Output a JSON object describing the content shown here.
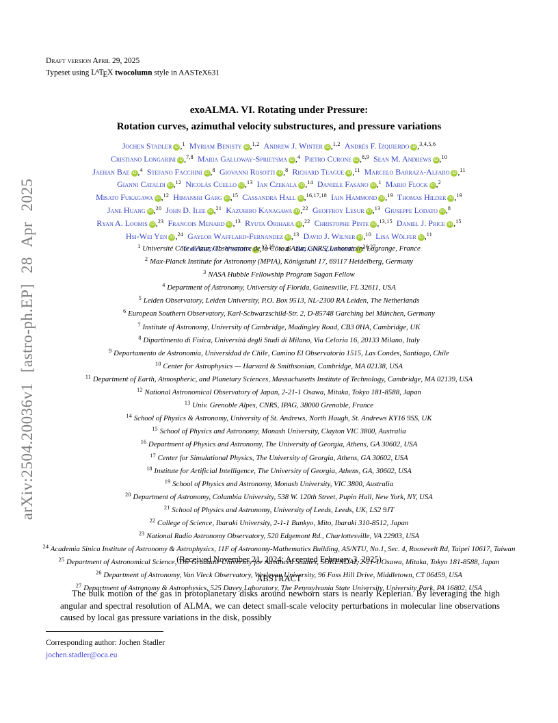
{
  "colors": {
    "author_link": "#3342c2",
    "email_link": "#4646dd",
    "orcid_green": "#a6ce39",
    "sidebar_gray": "#7c7c7c"
  },
  "icons": {
    "orcid_label": "iD"
  },
  "sidebar": {
    "stamp": "arXiv:2504.20036v1 [astro-ph.EP] 28 Apr 2025"
  },
  "header": {
    "draft_line": "Draft version April 29, 2025",
    "typeset_pre": "Typeset using ",
    "latex": [
      "L",
      "A",
      "T",
      "E",
      "X"
    ],
    "typeset_style": "twocolumn",
    "typeset_post": " style in AASTeX631"
  },
  "title": {
    "line1": "exoALMA. VI. Rotating under Pressure:",
    "line2": "Rotation curves, azimuthal velocity substructures, and pressure variations"
  },
  "authors": {
    "lines": [
      [
        {
          "name": "Jochen Stadler",
          "sup": "1"
        },
        {
          "name": "Myriam Benisty",
          "sup": "1,2"
        },
        {
          "name": "Andrew J. Winter",
          "sup": "1,2"
        },
        {
          "name": "Andrés F. Izquierdo",
          "sup": "3,4,5,6"
        }
      ],
      [
        {
          "name": "Cristiano Longarini",
          "sup": "7,8"
        },
        {
          "name": "Maria Galloway-Sprietsma",
          "sup": "4"
        },
        {
          "name": "Pietro Curone",
          "sup": "8,9"
        },
        {
          "name": "Sean M. Andrews",
          "sup": "10"
        }
      ],
      [
        {
          "name": "Jaehan Bae",
          "sup": "4"
        },
        {
          "name": "Stefano Facchini",
          "sup": "8"
        },
        {
          "name": "Giovanni Rosotti",
          "sup": "8"
        },
        {
          "name": "Richard Teague",
          "sup": "11"
        },
        {
          "name": "Marcelo Barraza-Alfaro",
          "sup": "11"
        }
      ],
      [
        {
          "name": "Gianni Cataldi",
          "sup": "12"
        },
        {
          "name": "Nicolás Cuello",
          "sup": "13"
        },
        {
          "name": "Ian Czekala",
          "sup": "14"
        },
        {
          "name": "Daniele Fasano",
          "sup": "1"
        },
        {
          "name": "Mario Flock",
          "sup": "2"
        }
      ],
      [
        {
          "name": "Misato Fukagawa",
          "sup": "12"
        },
        {
          "name": "Himanshi Garg",
          "sup": "15"
        },
        {
          "name": "Cassandra Hall",
          "sup": "16,17,18"
        },
        {
          "name": "Iain Hammond",
          "sup": "19"
        },
        {
          "name": "Thomas Hilder",
          "sup": "19"
        }
      ],
      [
        {
          "name": "Jane Huang",
          "sup": "20"
        },
        {
          "name": "John D. Ilee",
          "sup": "21"
        },
        {
          "name": "Kazuhiro Kanagawa",
          "sup": "22"
        },
        {
          "name": "Geoffroy Lesur",
          "sup": "13"
        },
        {
          "name": "Giuseppe Lodato",
          "sup": "8"
        }
      ],
      [
        {
          "name": "Ryan A. Loomis",
          "sup": "23"
        },
        {
          "name": "Francois Menard",
          "sup": "13"
        },
        {
          "name": "Ryuta Orihara",
          "sup": "22"
        },
        {
          "name": "Christophe Pinte",
          "sup": "13,15"
        },
        {
          "name": "Daniel J. Price",
          "sup": "15"
        }
      ],
      [
        {
          "name": "Hsi-Wei Yen",
          "sup": "24"
        },
        {
          "name": "Gaylor Wafflard-Fernandez",
          "sup": "13"
        },
        {
          "name": "David J. Wilner",
          "sup": "10"
        },
        {
          "name": "Lisa Wölfer",
          "sup": "11"
        }
      ],
      [
        {
          "name": "Tomohiro C. Yoshida",
          "sup": "12,25"
        },
        {
          "prefix": "and",
          "name": "Brianna Zawadzki",
          "sup": "26,27",
          "no_comma": true
        }
      ]
    ]
  },
  "affiliations": [
    {
      "n": "1",
      "text": "Université Côte d'Azur, Observatoire de la Côte d'Azur, CNRS, Laboratoire Lagrange, France"
    },
    {
      "n": "2",
      "text": "Max-Planck Institute for Astronomy (MPIA), Königstuhl 17, 69117 Heidelberg, Germany"
    },
    {
      "n": "3",
      "text": "NASA Hubble Fellowship Program Sagan Fellow"
    },
    {
      "n": "4",
      "text": "Department of Astronomy, University of Florida, Gainesville, FL 32611, USA"
    },
    {
      "n": "5",
      "text": "Leiden Observatory, Leiden University, P.O. Box 9513, NL-2300 RA Leiden, The Netherlands"
    },
    {
      "n": "6",
      "text": "European Southern Observatory, Karl-Schwarzschild-Str. 2, D-85748 Garching bei München, Germany"
    },
    {
      "n": "7",
      "text": "Institute of Astronomy, University of Cambridge, Madingley Road, CB3 0HA, Cambridge, UK"
    },
    {
      "n": "8",
      "text": "Dipartimento di Fisica, Università degli Studi di Milano, Via Celoria 16, 20133 Milano, Italy"
    },
    {
      "n": "9",
      "text": "Departamento de Astronomía, Universidad de Chile, Camino El Observatorio 1515, Las Condes, Santiago, Chile"
    },
    {
      "n": "10",
      "text": "Center for Astrophysics — Harvard & Smithsonian, Cambridge, MA 02138, USA"
    },
    {
      "n": "11",
      "text": "Department of Earth, Atmospheric, and Planetary Sciences, Massachusetts Institute of Technology, Cambridge, MA 02139, USA"
    },
    {
      "n": "12",
      "text": "National Astronomical Observatory of Japan, 2-21-1 Osawa, Mitaka, Tokyo 181-8588, Japan"
    },
    {
      "n": "13",
      "text": "Univ. Grenoble Alpes, CNRS, IPAG, 38000 Grenoble, France"
    },
    {
      "n": "14",
      "text": "School of Physics & Astronomy, University of St. Andrews, North Haugh, St. Andrews KY16 9SS, UK"
    },
    {
      "n": "15",
      "text": "School of Physics and Astronomy, Monash University, Clayton VIC 3800, Australia"
    },
    {
      "n": "16",
      "text": "Department of Physics and Astronomy, The University of Georgia, Athens, GA 30602, USA"
    },
    {
      "n": "17",
      "text": "Center for Simulational Physics, The University of Georgia, Athens, GA 30602, USA"
    },
    {
      "n": "18",
      "text": "Institute for Artificial Intelligence, The University of Georgia, Athens, GA, 30602, USA"
    },
    {
      "n": "19",
      "text": "School of Physics and Astronomy, Monash University, VIC 3800, Australia"
    },
    {
      "n": "20",
      "text": "Department of Astronomy, Columbia University, 538 W. 120th Street, Pupin Hall, New York, NY, USA"
    },
    {
      "n": "21",
      "text": "School of Physics and Astronomy, University of Leeds, Leeds, UK, LS2 9JT"
    },
    {
      "n": "22",
      "text": "College of Science, Ibaraki University, 2-1-1 Bunkyo, Mito, Ibaraki 310-8512, Japan"
    },
    {
      "n": "23",
      "text": "National Radio Astronomy Observatory, 520 Edgemont Rd., Charlottesville, VA 22903, USA"
    },
    {
      "n": "24",
      "text": "Academia Sinica Institute of Astronomy & Astrophysics, 11F of Astronomy-Mathematics Building, AS/NTU, No.1, Sec. 4, Roosevelt Rd, Taipei 10617, Taiwan"
    },
    {
      "n": "25",
      "text": "Department of Astronomical Science, The Graduate University for Advanced Studies, SOKENDAI, 2-21-1 Osawa, Mitaka, Tokyo 181-8588, Japan"
    },
    {
      "n": "26",
      "text": "Department of Astronomy, Van Vleck Observatory, Wesleyan University, 96 Foss Hill Drive, Middletown, CT 06459, USA"
    },
    {
      "n": "27",
      "text": "Department of Astronomy & Astrophysics, 525 Davey Laboratory, The Pennsylvania State University, University Park, PA 16802, USA"
    }
  ],
  "dates": {
    "received_line": "(Received November 21, 2024; Accepted February 3, 2025)"
  },
  "abstract": {
    "heading": "ABSTRACT",
    "text": "The bulk motion of the gas in protoplanetary disks around newborn stars is nearly Keplerian. By leveraging the high angular and spectral resolution of ALMA, we can detect small-scale velocity perturbations in molecular line observations caused by local gas pressure variations in the disk, possibly"
  },
  "footer": {
    "corresponding_label": "Corresponding author: Jochen Stadler",
    "email": "jochen.stadler@oca.eu"
  }
}
